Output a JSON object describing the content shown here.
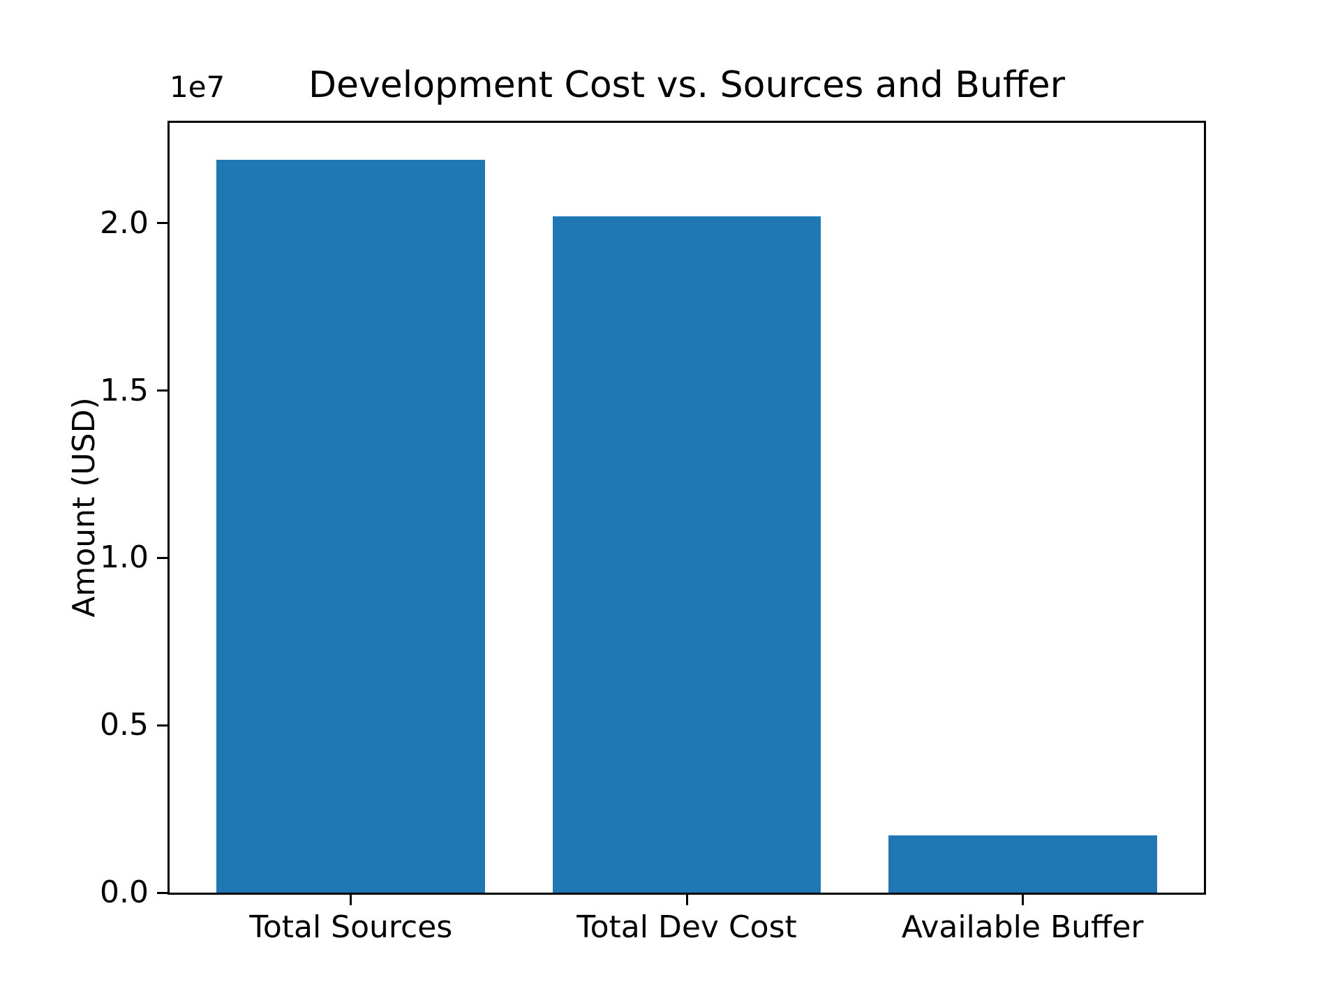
{
  "chart_data": {
    "type": "bar",
    "title": "Development Cost vs. Sources and Buffer",
    "categories": [
      "Total Sources",
      "Total Dev Cost",
      "Available Buffer"
    ],
    "values": [
      21900000,
      20200000,
      1700000
    ],
    "xlabel": "",
    "ylabel": "Amount (USD)",
    "y_offset_label": "1e7",
    "ylim": [
      0,
      23000000
    ],
    "yticks": [
      0,
      5000000,
      10000000,
      15000000,
      20000000
    ],
    "ytick_labels": [
      "0.0",
      "0.5",
      "1.0",
      "1.5",
      "2.0"
    ],
    "bar_color": "#1f77b4",
    "axis_color": "#000000",
    "background_color": "#ffffff",
    "grid": false,
    "legend": null,
    "bar_width_fraction": 0.8,
    "x_margin": 0.54
  }
}
